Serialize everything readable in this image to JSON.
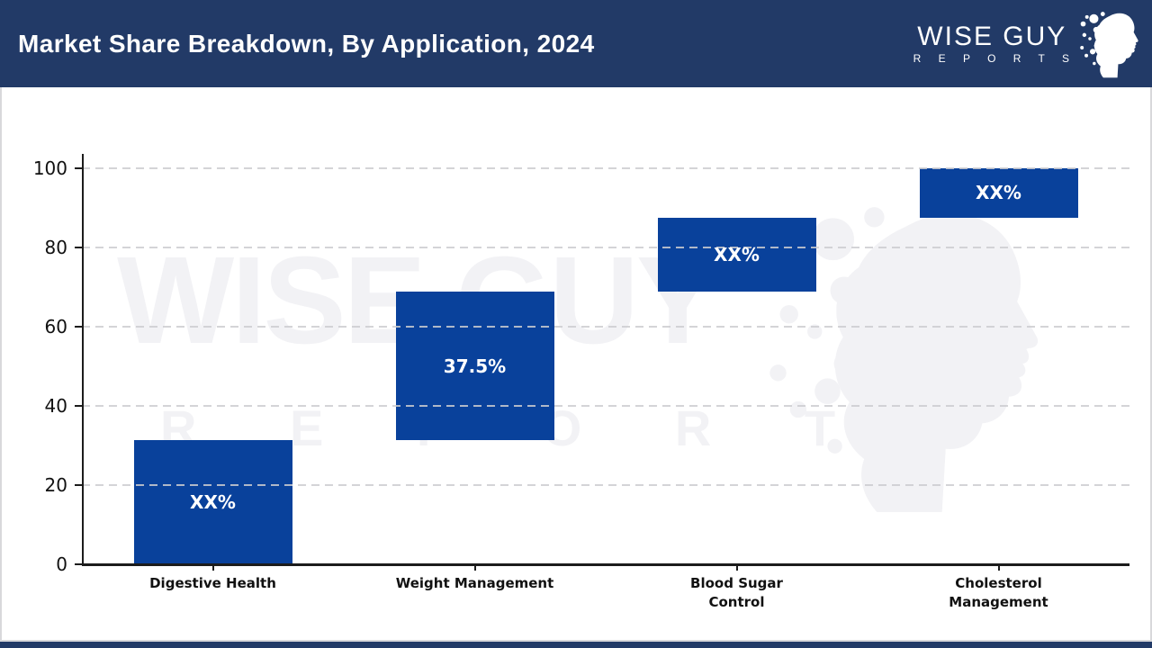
{
  "header": {
    "title": "Market Share Breakdown, By Application, 2024",
    "logo": {
      "line1": "WISE GUY",
      "line2": "R E P O R T S"
    }
  },
  "watermark": {
    "line1": "WISE GUY",
    "line2": "R E P O R T S"
  },
  "colors": {
    "header_bg": "#223a67",
    "bar": "#09419b",
    "grid": "#cdcdd0",
    "axis": "#1c1c1c",
    "bar_label": "#ffffff",
    "watermark": "#f2f2f5"
  },
  "chart_data": {
    "type": "bar",
    "subtype": "floating-waterfall-share",
    "title": "Market Share Breakdown, By Application, 2024",
    "categories": [
      "Digestive Health",
      "Weight Management",
      "Blood Sugar Control",
      "Cholesterol Management"
    ],
    "tick_labels": [
      "Digestive Health",
      "Weight Management",
      "Blood Sugar\nControl",
      "Cholesterol\nManagement"
    ],
    "segments": [
      {
        "category": "Digestive Health",
        "start": 0,
        "end": 31.25,
        "label": "XX%"
      },
      {
        "category": "Weight Management",
        "start": 31.25,
        "end": 68.75,
        "label": "37.5%"
      },
      {
        "category": "Blood Sugar Control",
        "start": 68.75,
        "end": 87.5,
        "label": "XX%"
      },
      {
        "category": "Cholesterol Management",
        "start": 87.5,
        "end": 100,
        "label": "XX%"
      }
    ],
    "xlabel": "",
    "ylabel": "",
    "ylim": [
      0,
      100
    ],
    "yticks": [
      0,
      20,
      40,
      60,
      80,
      100
    ],
    "grid": "horizontal-dashed",
    "legend": "none",
    "bar_color": "#09419b"
  }
}
